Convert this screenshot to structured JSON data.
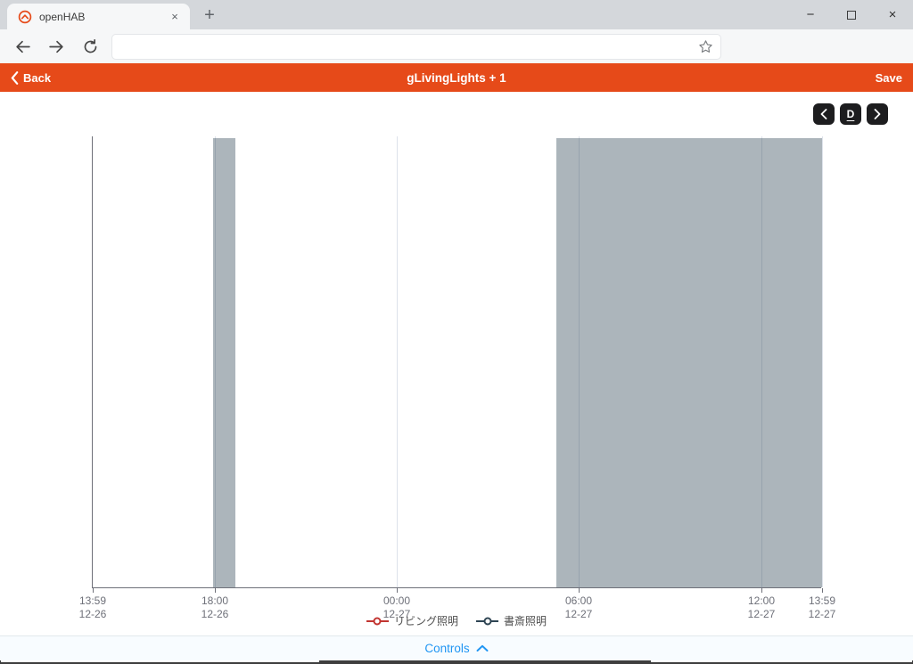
{
  "browser": {
    "tab_title": "openHAB",
    "tab_close": "×",
    "new_tab": "+",
    "address_value": "",
    "window_controls": {
      "minimize": "−",
      "close": "×"
    }
  },
  "appbar": {
    "back_label": "Back",
    "title": "gLivingLights + 1",
    "save_label": "Save",
    "accent_color": "#e64a19"
  },
  "chart_nav": {
    "period_label": "D"
  },
  "chart_data": {
    "type": "area",
    "title": "",
    "xlabel": "",
    "ylabel": "",
    "ylim": [
      0,
      1
    ],
    "grid": true,
    "legend_position": "bottom-center",
    "x_range_labels": [
      "13:59 12-26",
      "13:59 12-27"
    ],
    "x_ticks": [
      {
        "time": "13:59",
        "date": "12-26",
        "frac": 0
      },
      {
        "time": "18:00",
        "date": "12-26",
        "frac": 0.1675
      },
      {
        "time": "00:00",
        "date": "12-27",
        "frac": 0.4169
      },
      {
        "time": "06:00",
        "date": "12-27",
        "frac": 0.6663
      },
      {
        "time": "12:00",
        "date": "12-27",
        "frac": 0.9169
      },
      {
        "time": "13:59",
        "date": "12-27",
        "frac": 1
      }
    ],
    "series": [
      {
        "name": "リビング照明",
        "color": "#c23531",
        "on_intervals": []
      },
      {
        "name": "書斎照明",
        "color": "#2f4554",
        "fill": "rgba(47,69,84,0.4)",
        "on_intervals": [
          {
            "start": "17:57 12-26",
            "end": "18:40 12-26",
            "start_frac": 0.165,
            "end_frac": 0.1956
          },
          {
            "start": "05:15 12-27",
            "end": "13:59 12-27",
            "start_frac": 0.6357,
            "end_frac": 1.0
          }
        ]
      }
    ]
  },
  "footer": {
    "controls_label": "Controls"
  }
}
